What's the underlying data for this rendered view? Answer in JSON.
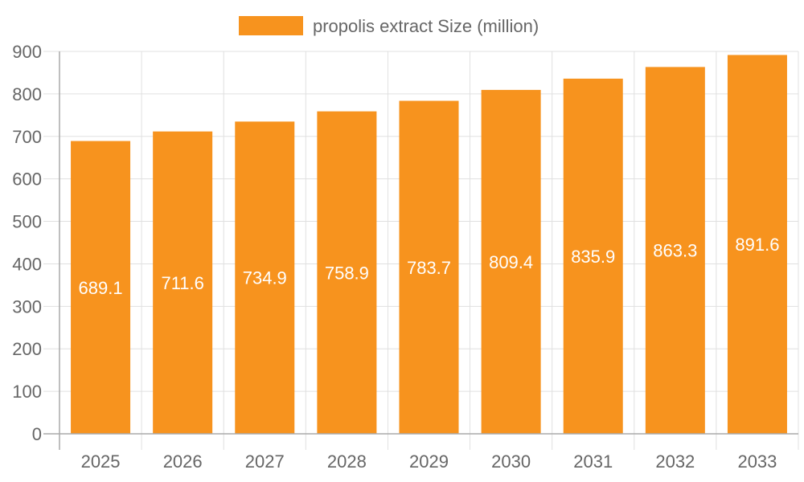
{
  "chart_data": {
    "type": "bar",
    "categories": [
      "2025",
      "2026",
      "2027",
      "2028",
      "2029",
      "2030",
      "2031",
      "2032",
      "2033"
    ],
    "series": [
      {
        "name": "propolis extract Size (million)",
        "values": [
          689.1,
          711.6,
          734.9,
          758.9,
          783.7,
          809.4,
          835.9,
          863.3,
          891.6
        ],
        "color": "#f7931e"
      }
    ],
    "ylim": [
      0,
      900
    ],
    "yticks": [
      0,
      100,
      200,
      300,
      400,
      500,
      600,
      700,
      800,
      900
    ],
    "grid": true,
    "legend": "top",
    "data_labels": [
      "689.1",
      "711.6",
      "734.9",
      "758.9",
      "783.7",
      "809.4",
      "835.9",
      "863.3",
      "891.6"
    ],
    "title": "",
    "xlabel": "",
    "ylabel": ""
  }
}
